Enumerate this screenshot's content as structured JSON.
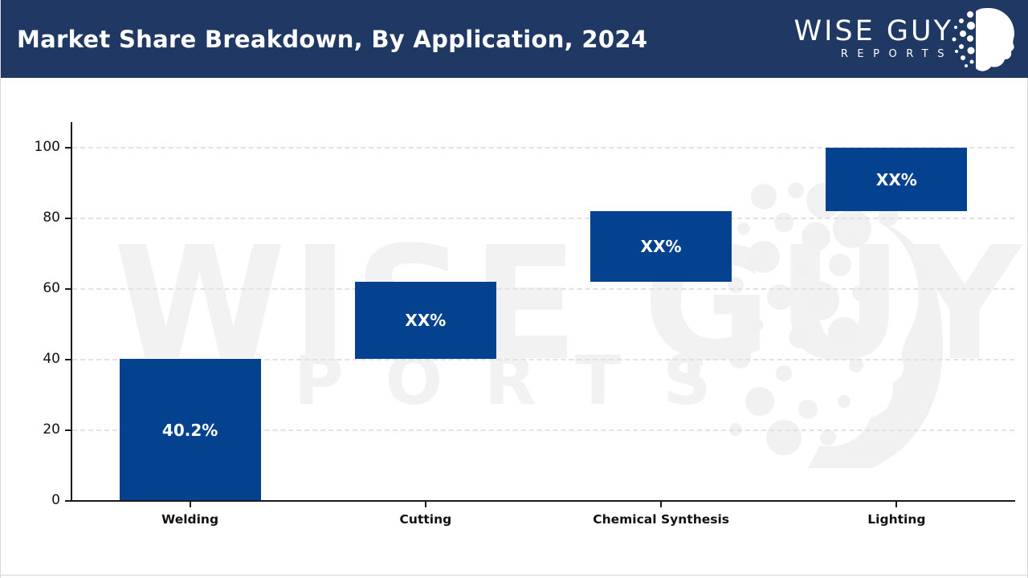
{
  "header": {
    "title": "Market Share Breakdown, By Application, 2024",
    "logo": {
      "line1": "WISE GUY",
      "line2": "REPORTS",
      "icon": "dotted-head-profile"
    },
    "bg_color": "#1f3864"
  },
  "watermark": {
    "line1": "WISE GUY",
    "line2": "PORTS",
    "icon": "dotted-head-profile-watermark",
    "color": "#f2f2f2"
  },
  "chart_data": {
    "type": "bar",
    "subtype": "waterfall",
    "title": "Market Share Breakdown, By Application, 2024",
    "categories": [
      "Welding",
      "Cutting",
      "Chemical Synthesis",
      "Lighting"
    ],
    "segments": [
      {
        "category": "Welding",
        "start": 0,
        "end": 40.2,
        "label": "40.2%"
      },
      {
        "category": "Cutting",
        "start": 40.2,
        "end": 62,
        "label": "XX%"
      },
      {
        "category": "Chemical Synthesis",
        "start": 62,
        "end": 82,
        "label": "XX%"
      },
      {
        "category": "Lighting",
        "start": 82,
        "end": 100,
        "label": "XX%"
      }
    ],
    "y_ticks": [
      0,
      20,
      40,
      60,
      80,
      100
    ],
    "ylim": [
      0,
      107
    ],
    "xlabel": "",
    "ylabel": "",
    "grid": "horizontal-dashed",
    "legend": "none",
    "bar_color": "#04418e",
    "bar_label_color": "#ffffff",
    "axis_color": "#1a1a1a",
    "grid_color": "#e2e2e2"
  }
}
